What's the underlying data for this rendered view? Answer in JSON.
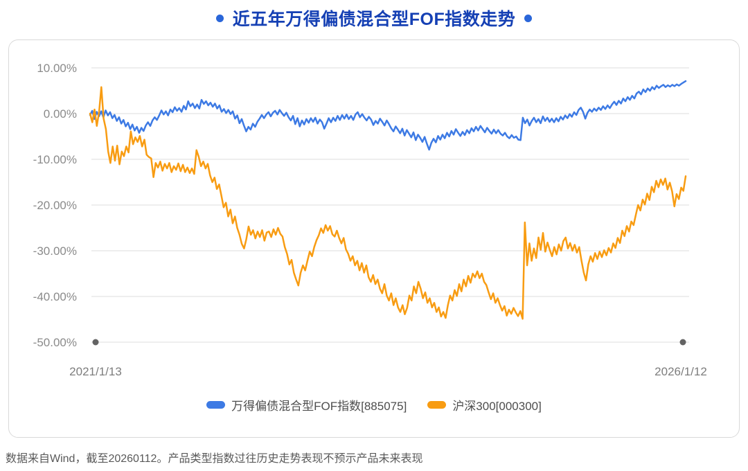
{
  "title": "近五年万得偏债混合型FOF指数走势",
  "footnote": "数据来自Wind，截至20260112。产品类型指数过往历史走势表现不预示产品未来表现",
  "colors": {
    "title_text": "#1540b4",
    "title_dot": "#2a66d9",
    "grid": "#e3e3e3",
    "tick_text": "#8a8a8a",
    "axis_text": "#7d7d7d",
    "axis_dot": "#636363",
    "legend_text": "#4d4d4d",
    "footnote_text": "#595959",
    "card_border": "#d9d9d9"
  },
  "chart_data": {
    "type": "line",
    "title": "近五年万得偏债混合型FOF指数走势",
    "xlabel": "",
    "ylabel": "",
    "x_range": [
      "2021/1/13",
      "2026/1/12"
    ],
    "ylim": [
      -50,
      10
    ],
    "ytick_labels": [
      "10.00%",
      "0.00%",
      "-10.00%",
      "-20.00%",
      "-30.00%",
      "-40.00%",
      "-50.00%"
    ],
    "grid": true,
    "legend_position": "bottom",
    "unit": "percent_return",
    "series": [
      {
        "id": "fof-index",
        "name": "万得偏债混合型FOF指数[885075]",
        "color": "#3d7ae4",
        "values": [
          -0.3,
          0.6,
          -1.2,
          0.4,
          -0.6,
          0.5,
          -0.8,
          0.7,
          -0.4,
          0.3,
          -1,
          -0.3,
          -1.6,
          -0.8,
          -2.2,
          -1.4,
          -2.8,
          -2,
          -3.4,
          -2.4,
          -3.7,
          -2.9,
          -4.2,
          -3.1,
          -3.8,
          -2.6,
          -1.9,
          -2.7,
          -1.5,
          -0.8,
          -1.4,
          -0.4,
          0.7,
          -0.2,
          0.5,
          -0.4,
          0.9,
          0.3,
          1.4,
          0.6,
          1.2,
          0.4,
          1.7,
          0.9,
          2.7,
          1.6,
          2.2,
          1.2,
          2,
          1.1,
          3,
          2.1,
          2.7,
          1.8,
          2.4,
          1.5,
          2.2,
          1.1,
          1.8,
          0.4,
          1,
          0.1,
          0.8,
          -0.1,
          0.5,
          -1.1,
          -0.4,
          -2.1,
          -1.2,
          -2.6,
          -3.9,
          -2.9,
          -3.5,
          -2.2,
          -2.9,
          -1.8,
          -1.1,
          -0.3,
          -1,
          -0.2,
          0.3,
          -0.6,
          0.2,
          0.6,
          -0.2,
          0.8,
          0.1,
          -0.5,
          0.2,
          -0.8,
          -1.5,
          -0.5,
          -2.3,
          -1,
          -2.8,
          -1.5,
          -2.4,
          -1.2,
          -2,
          -1,
          -1.8,
          -0.9,
          -2.2,
          -1.3,
          -1.9,
          -3.3,
          -2.2,
          -1,
          -1.9,
          -0.9,
          -1.6,
          -0.5,
          -1.4,
          -0.3,
          -1.1,
          -0.2,
          -1.2,
          -0.5,
          -1.4,
          -0.2,
          0.3,
          -0.8,
          -0.1,
          -0.9,
          -1.5,
          -0.7,
          -1.3,
          -2.5,
          -1.6,
          -2.2,
          -1.1,
          -1.8,
          -2.6,
          -1.5,
          -2.3,
          -3.2,
          -3.9,
          -2.8,
          -3.5,
          -4.3,
          -3.3,
          -4.8,
          -3.6,
          -4.4,
          -5.2,
          -4.1,
          -5.8,
          -4.6,
          -5.3,
          -6.2,
          -5.1,
          -6.6,
          -7.9,
          -6.4,
          -5.5,
          -6.3,
          -4.9,
          -5.7,
          -4.6,
          -5.4,
          -4.2,
          -5,
          -3.8,
          -4.6,
          -3.4,
          -4.2,
          -4.9,
          -4,
          -4.7,
          -3.6,
          -4.3,
          -3.2,
          -3.9,
          -2.9,
          -3.7,
          -2.7,
          -3.4,
          -4.1,
          -3.1,
          -3.8,
          -4.4,
          -3.5,
          -4.3,
          -3.6,
          -4.4,
          -4.8,
          -4.2,
          -5,
          -5.4,
          -4.7,
          -5.3,
          -5,
          -5.7,
          -5.8,
          -0.9,
          -2.1,
          -1.3,
          -2.6,
          -1.6,
          -0.9,
          -1.9,
          -1.2,
          -2.1,
          -0.6,
          -1.6,
          -0.9,
          -1.8,
          -1.1,
          -1.9,
          -1,
          -1.7,
          -0.7,
          -1.3,
          -0.4,
          -1,
          -0.1,
          -0.7,
          0.3,
          -0.3,
          0.8,
          1.3,
          0.4,
          -1.1,
          0.2,
          0.9,
          0.4,
          1.1,
          0.6,
          1.3,
          0.8,
          1.6,
          1,
          1.8,
          1.2,
          2,
          2.6,
          1.9,
          2.8,
          2.2,
          3.3,
          2.7,
          3.6,
          3,
          3.9,
          3.3,
          4.4,
          4.8,
          4.2,
          5.3,
          4.7,
          5.5,
          5,
          5.8,
          5.3,
          6.1,
          5.6,
          6,
          6.3,
          5.8,
          6.2,
          5.9,
          6.3,
          6,
          6.4,
          6.1,
          6.5,
          6.8,
          7.1
        ]
      },
      {
        "id": "csi300",
        "name": "沪深300[000300]",
        "color": "#f89c12",
        "values": [
          0,
          -1.9,
          0.9,
          -2.7,
          0.4,
          5.8,
          -1.1,
          -3.4,
          -8.3,
          -10.8,
          -7.2,
          -10.3,
          -7,
          -11.1,
          -8.3,
          -9.3,
          -7.2,
          -8.5,
          -3.9,
          -6.7,
          -5.2,
          -6.2,
          -4.9,
          -7.2,
          -5.7,
          -9,
          -9.5,
          -9.8,
          -13.9,
          -10.8,
          -11.8,
          -10.5,
          -12.5,
          -11,
          -12,
          -10.8,
          -12.8,
          -11.5,
          -12.3,
          -10.9,
          -12.6,
          -11.2,
          -12.8,
          -11.8,
          -13,
          -12,
          -13.2,
          -8,
          -9.5,
          -11.5,
          -10.5,
          -12,
          -11,
          -13.5,
          -15,
          -14,
          -16.5,
          -15.5,
          -18,
          -20.5,
          -19.5,
          -22.5,
          -21,
          -24,
          -22.5,
          -25,
          -26.5,
          -28.5,
          -29.5,
          -27.5,
          -24.7,
          -26.5,
          -25.5,
          -27.3,
          -25.8,
          -27,
          -25.5,
          -27.8,
          -26,
          -25.8,
          -27,
          -25.3,
          -26.5,
          -25,
          -26.3,
          -26.9,
          -29.2,
          -30.7,
          -33,
          -32,
          -34.8,
          -36.3,
          -37.6,
          -34.8,
          -33.2,
          -34.3,
          -32.2,
          -30.2,
          -31.2,
          -29.2,
          -27.7,
          -26.6,
          -25.1,
          -26.1,
          -24.4,
          -25.6,
          -24.6,
          -26.4,
          -26.9,
          -25.6,
          -27.2,
          -28.4,
          -27.2,
          -29.7,
          -30.7,
          -32.2,
          -31.2,
          -33.2,
          -32.2,
          -34.3,
          -32.7,
          -34.8,
          -33.2,
          -35.8,
          -36.8,
          -35.3,
          -37.3,
          -36.3,
          -38.3,
          -39.3,
          -37.3,
          -39.8,
          -40.9,
          -39.3,
          -41.9,
          -40.4,
          -42.4,
          -43.4,
          -41.9,
          -43.9,
          -42.5,
          -39.8,
          -40.9,
          -37.8,
          -39.3,
          -36.8,
          -38.3,
          -40.4,
          -39.1,
          -41.4,
          -40.4,
          -42.4,
          -41.4,
          -43.4,
          -42.4,
          -44.4,
          -43.4,
          -44.7,
          -41.9,
          -39.8,
          -40.9,
          -38.6,
          -39.9,
          -37.3,
          -38.9,
          -36.3,
          -37.8,
          -35.5,
          -37,
          -35,
          -35.8,
          -34.5,
          -36,
          -35,
          -36.8,
          -37.5,
          -39.1,
          -40.6,
          -39.3,
          -41.4,
          -40.4,
          -41.9,
          -43.1,
          -42.1,
          -44.2,
          -42.9,
          -43.8,
          -42.5,
          -43.5,
          -44.3,
          -43.2,
          -44.9,
          -23.8,
          -33.2,
          -28.4,
          -32.2,
          -29.5,
          -31.6,
          -27.1,
          -29.8,
          -26.1,
          -30.2,
          -28.2,
          -29.8,
          -31.2,
          -29.2,
          -30.8,
          -28.6,
          -30,
          -27.9,
          -27.1,
          -29.5,
          -28.3,
          -30,
          -28.7,
          -30.4,
          -29.2,
          -32.2,
          -34.8,
          -36.5,
          -33,
          -31.2,
          -32.4,
          -30.5,
          -31.8,
          -30.2,
          -31.4,
          -29.9,
          -31,
          -29.4,
          -30.4,
          -28.4,
          -29.4,
          -27.2,
          -28.3,
          -25.6,
          -26.8,
          -24.6,
          -25.8,
          -23.6,
          -24.4,
          -22.1,
          -20,
          -21.2,
          -18.8,
          -19.9,
          -17.5,
          -18.9,
          -16,
          -17.2,
          -14.7,
          -16.1,
          -14.4,
          -15.6,
          -14.2,
          -16.6,
          -15.1,
          -17,
          -20.3,
          -17.6,
          -18.7,
          -16.2,
          -16.9,
          -13.7
        ]
      }
    ]
  }
}
